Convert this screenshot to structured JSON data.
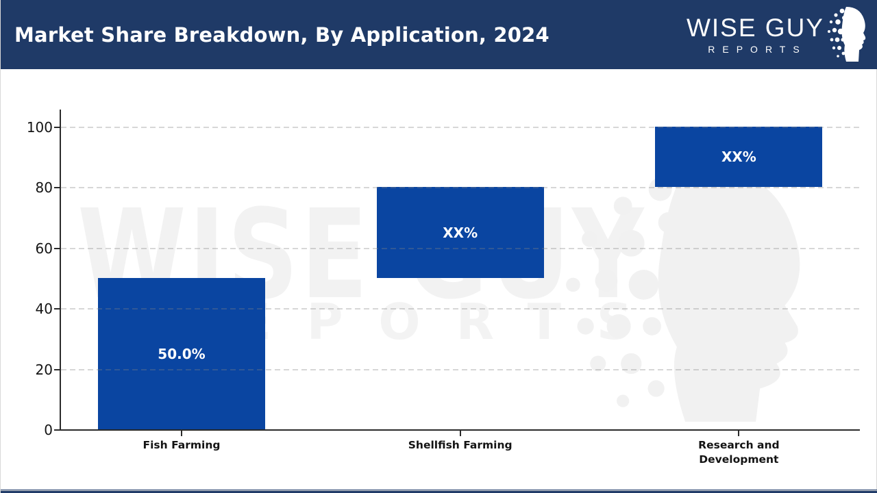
{
  "header": {
    "title": "Market Share Breakdown, By Application, 2024",
    "logo": {
      "brand_line1": "WISE GUY",
      "brand_line2": "REPORTS",
      "face_icon": "dotted-head-profile"
    }
  },
  "watermark": {
    "line1": "WISE GUY",
    "line2": "REPORTS",
    "face_icon": "dotted-head-profile"
  },
  "chart_data": {
    "type": "bar",
    "variant": "waterfall",
    "title": "Market Share Breakdown, By Application, 2024",
    "categories": [
      "Fish Farming",
      "Shellfish Farming",
      "Research and Development"
    ],
    "segments": [
      {
        "category": "Fish Farming",
        "start": 0,
        "end": 50,
        "label": "50.0%"
      },
      {
        "category": "Shellfish Farming",
        "start": 50,
        "end": 80,
        "label": "XX%"
      },
      {
        "category": "Research and Development",
        "start": 80,
        "end": 100,
        "label": "XX%"
      }
    ],
    "xlabel": "",
    "ylabel": "",
    "yticks": [
      0,
      20,
      40,
      60,
      80,
      100
    ],
    "ylim": [
      0,
      105.7
    ],
    "grid": "dashed-horizontal-over-bars",
    "legend": "none",
    "bar_color": "#0a45a1",
    "bar_label_color": "#ffffff",
    "axis_color": "#2a2a2a",
    "header_color": "#1f3a67",
    "watermark_color": "#f2f2f2"
  }
}
